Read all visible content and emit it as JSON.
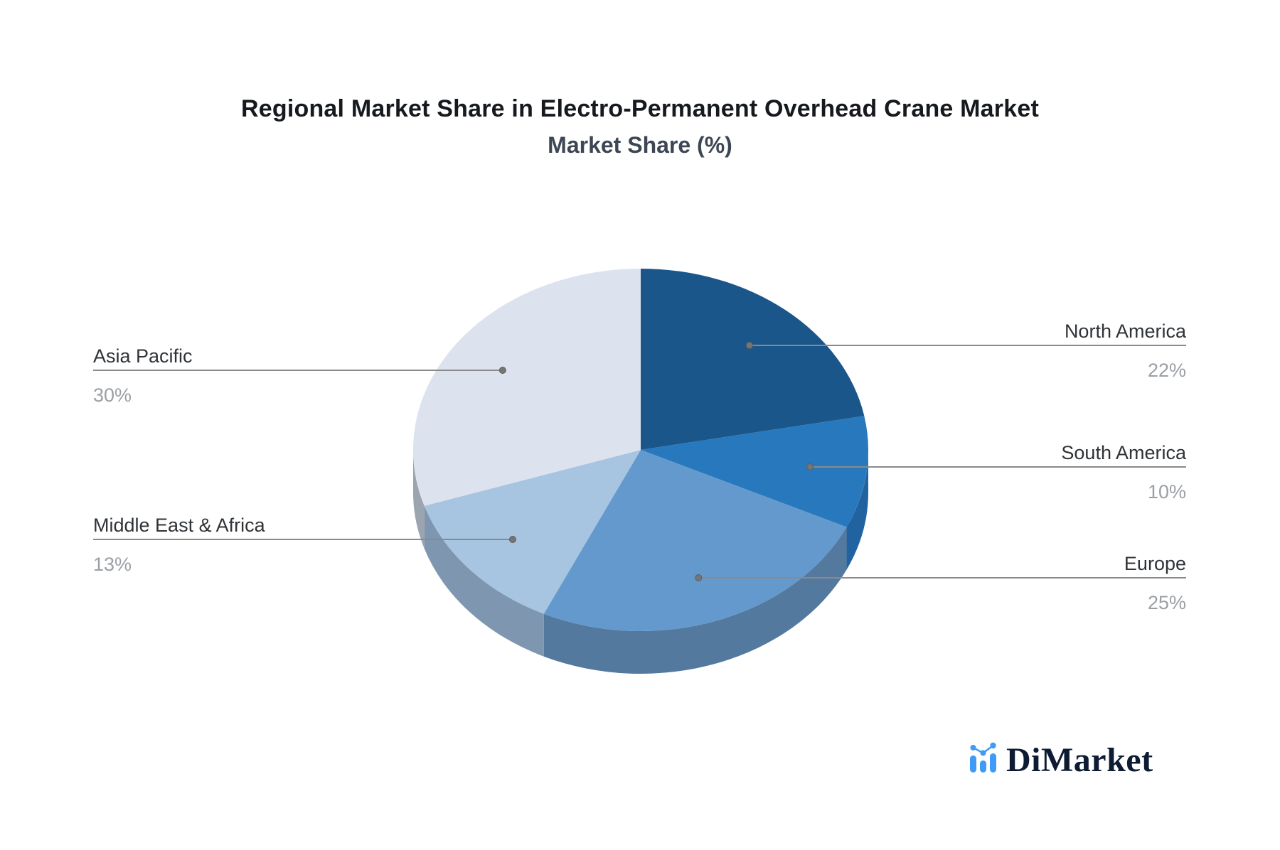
{
  "header": {
    "title": "Regional Market Share in Electro-Permanent Overhead Crane Market",
    "subtitle": "Market Share (%)"
  },
  "chart_data": {
    "type": "pie",
    "style": "3d",
    "title": "Regional Market Share in Electro-Permanent Overhead Crane Market",
    "subtitle": "Market Share (%)",
    "unit": "%",
    "start_angle": "12-o-clock",
    "direction": "clockwise",
    "legend_position": "callout-labels",
    "segments": [
      {
        "label": "North America",
        "value": 22,
        "display": "22%",
        "color": "#1b568b",
        "rim_color": "#154470",
        "label_side": "right"
      },
      {
        "label": "South America",
        "value": 10,
        "display": "10%",
        "color": "#2878be",
        "rim_color": "#2163a0",
        "label_side": "right"
      },
      {
        "label": "Europe",
        "value": 25,
        "display": "25%",
        "color": "#6399cd",
        "rim_color": "#54799e",
        "label_side": "right"
      },
      {
        "label": "Middle East & Africa",
        "value": 13,
        "display": "13%",
        "color": "#a7c4e0",
        "rim_color": "#7e96af",
        "label_side": "left"
      },
      {
        "label": "Asia Pacific",
        "value": 30,
        "display": "30%",
        "color": "#dce3ef",
        "rim_color": "#9ca4b0",
        "label_side": "left"
      }
    ],
    "leader_line_color": "#8a8a8a",
    "leader_dot_color": "#757575",
    "label_color": "#2f3337",
    "value_color": "#9b9fa4"
  },
  "logo": {
    "text": "DiMarket",
    "icon": "bar-line-chart-icon",
    "icon_color": "#3f9bf7",
    "text_color": "#0e1c33"
  }
}
